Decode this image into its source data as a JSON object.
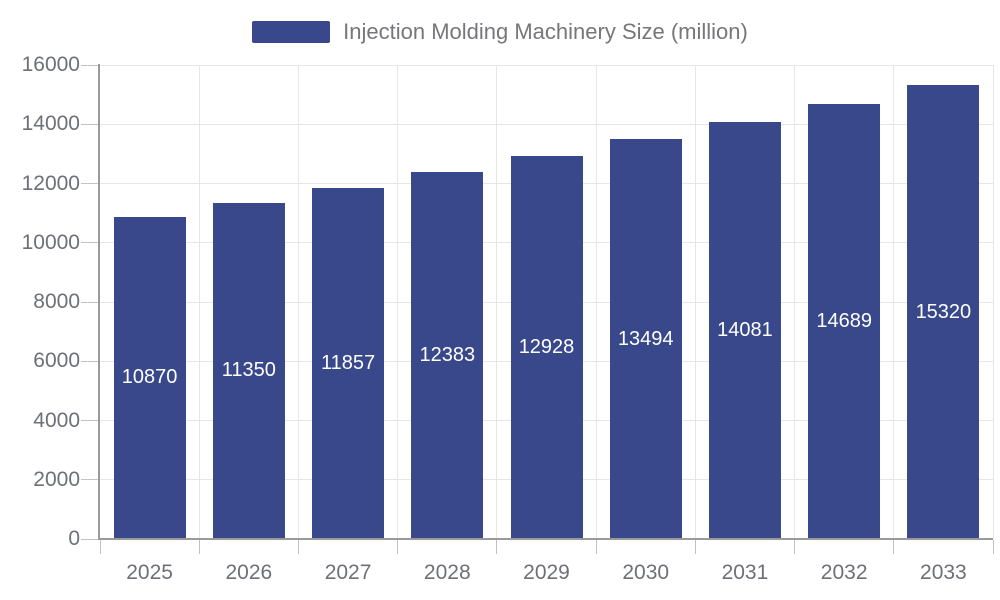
{
  "chart_data": {
    "type": "bar",
    "title": "Injection Molding Machinery Size (million)",
    "categories": [
      "2025",
      "2026",
      "2027",
      "2028",
      "2029",
      "2030",
      "2031",
      "2032",
      "2033"
    ],
    "values": [
      10870,
      11350,
      11857,
      12383,
      12928,
      13494,
      14081,
      14689,
      15320
    ],
    "xlabel": "",
    "ylabel": "",
    "ylim": [
      0,
      16000
    ],
    "ytick_step": 2000,
    "ytick_labels": [
      "0",
      "2000",
      "4000",
      "6000",
      "8000",
      "10000",
      "12000",
      "14000",
      "16000"
    ],
    "grid": true,
    "bar_labels_visible": true,
    "legend": {
      "position": "top",
      "label": "Injection Molding Machinery Size (million)"
    }
  },
  "colors": {
    "bar": "#39488B",
    "bar_label": "#FFFFFF",
    "axis_line": "#9A9A9A",
    "grid_line": "#E6E6E6",
    "tick_line": "#C2C2C2",
    "tick_label": "#6E7079",
    "legend_text": "#76777C",
    "background": "#FFFFFF"
  }
}
